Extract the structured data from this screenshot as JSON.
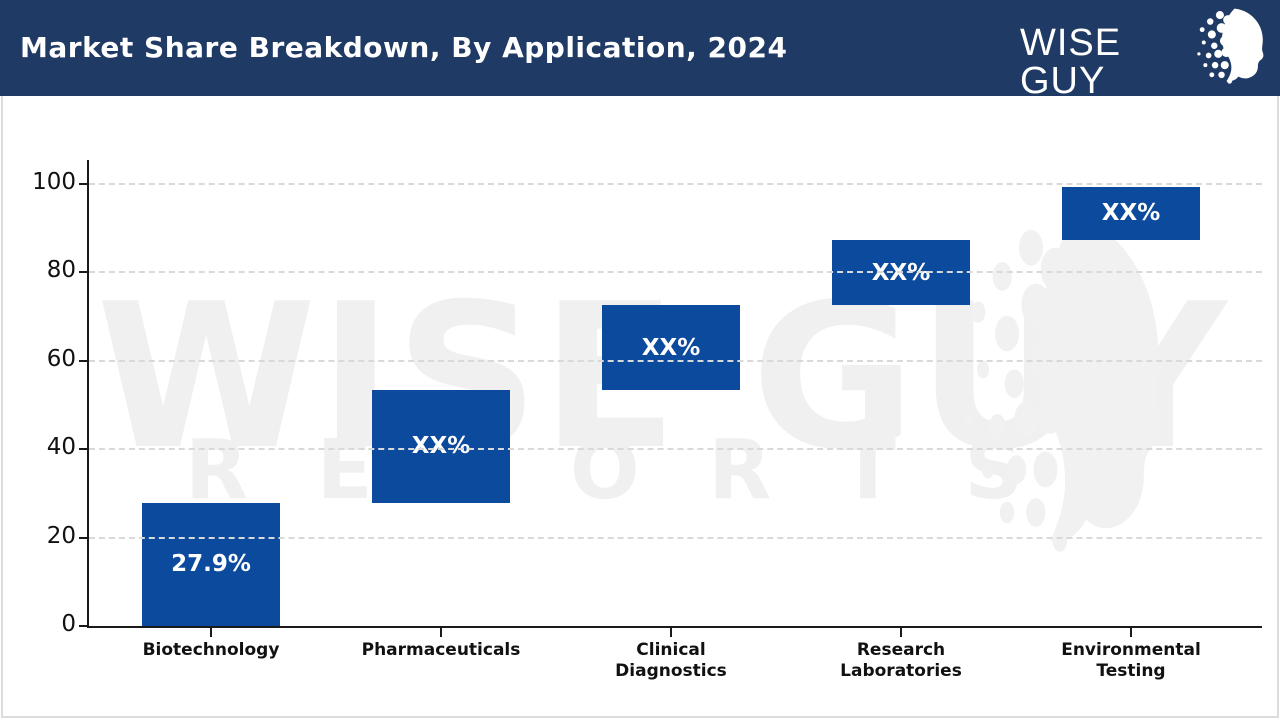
{
  "header": {
    "bg_color": "#1f3a64",
    "title": "Market Share Breakdown, By Application, 2024",
    "logo_line1": "WISE GUY",
    "logo_line2": "R E P O R T S"
  },
  "watermark": {
    "line1": "WISE GUY",
    "line2": "R E P O R T S"
  },
  "chart_data": {
    "type": "bar",
    "subtype": "waterfall",
    "title": "Market Share Breakdown, By Application, 2024",
    "xlabel": "",
    "ylabel": "",
    "ylim": [
      0,
      105
    ],
    "y_ticks": [
      0,
      20,
      40,
      60,
      80,
      100
    ],
    "grid": "horizontal-dashed",
    "legend": "none",
    "bar_color": "#0c4a9e",
    "categories": [
      "Biotechnology",
      "Pharmaceuticals",
      "Clinical Diagnostics",
      "Research Laboratories",
      "Environmental Testing"
    ],
    "category_label_lines": [
      [
        "Biotechnology"
      ],
      [
        "Pharmaceuticals"
      ],
      [
        "Clinical",
        "Diagnostics"
      ],
      [
        "Research",
        "Laboratories"
      ],
      [
        "Environmental",
        "Testing"
      ]
    ],
    "bars": [
      {
        "category": "Biotechnology",
        "start": 0,
        "end": 27.9,
        "value_label": "27.9%"
      },
      {
        "category": "Pharmaceuticals",
        "start": 27.9,
        "end": 53.4,
        "value_label": "XX%"
      },
      {
        "category": "Clinical Diagnostics",
        "start": 53.4,
        "end": 72.6,
        "value_label": "XX%"
      },
      {
        "category": "Research Laboratories",
        "start": 72.6,
        "end": 87.3,
        "value_label": "XX%"
      },
      {
        "category": "Environmental Testing",
        "start": 87.3,
        "end": 99.4,
        "value_label": "XX%"
      }
    ]
  }
}
